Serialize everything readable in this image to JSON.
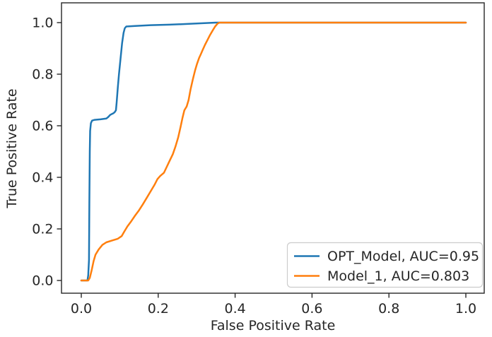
{
  "figure": {
    "background": "#ffffff",
    "text_color": "#262626",
    "legend_border_color": "#cccccc"
  },
  "chart_data": {
    "type": "line",
    "title": "",
    "xlabel": "False Positive Rate",
    "ylabel": "True Positive Rate",
    "xlim": [
      -0.05,
      1.05
    ],
    "ylim": [
      -0.05,
      1.07
    ],
    "grid": false,
    "legend_position": "lower right",
    "x_ticks": [
      0.0,
      0.2,
      0.4,
      0.6,
      0.8,
      1.0
    ],
    "y_ticks": [
      0.0,
      0.2,
      0.4,
      0.6,
      0.8,
      1.0
    ],
    "x_tick_labels": [
      "0.0",
      "0.2",
      "0.4",
      "0.6",
      "0.8",
      "1.0"
    ],
    "y_tick_labels": [
      "0.0",
      "0.2",
      "0.4",
      "0.6",
      "0.8",
      "1.0"
    ],
    "series": [
      {
        "name": "OPT_Model",
        "label": "OPT_Model, AUC=0.95",
        "auc": 0.95,
        "color": "#1f77b4",
        "points": [
          [
            0.0,
            0.0
          ],
          [
            0.016,
            0.0
          ],
          [
            0.018,
            0.02
          ],
          [
            0.02,
            0.08
          ],
          [
            0.021,
            0.3
          ],
          [
            0.022,
            0.5
          ],
          [
            0.023,
            0.58
          ],
          [
            0.025,
            0.61
          ],
          [
            0.028,
            0.62
          ],
          [
            0.035,
            0.623
          ],
          [
            0.05,
            0.625
          ],
          [
            0.065,
            0.628
          ],
          [
            0.07,
            0.634
          ],
          [
            0.075,
            0.642
          ],
          [
            0.08,
            0.646
          ],
          [
            0.084,
            0.649
          ],
          [
            0.087,
            0.653
          ],
          [
            0.09,
            0.66
          ],
          [
            0.092,
            0.69
          ],
          [
            0.095,
            0.75
          ],
          [
            0.098,
            0.8
          ],
          [
            0.102,
            0.86
          ],
          [
            0.106,
            0.92
          ],
          [
            0.11,
            0.96
          ],
          [
            0.113,
            0.978
          ],
          [
            0.117,
            0.985
          ],
          [
            0.14,
            0.987
          ],
          [
            0.18,
            0.99
          ],
          [
            0.23,
            0.992
          ],
          [
            0.28,
            0.995
          ],
          [
            0.32,
            0.998
          ],
          [
            0.35,
            1.0
          ],
          [
            1.0,
            1.0
          ]
        ]
      },
      {
        "name": "Model_1",
        "label": "Model_1, AUC=0.803",
        "auc": 0.803,
        "color": "#ff7f0e",
        "points": [
          [
            0.0,
            0.0
          ],
          [
            0.018,
            0.0
          ],
          [
            0.022,
            0.01
          ],
          [
            0.027,
            0.04
          ],
          [
            0.032,
            0.075
          ],
          [
            0.037,
            0.1
          ],
          [
            0.045,
            0.12
          ],
          [
            0.055,
            0.138
          ],
          [
            0.065,
            0.148
          ],
          [
            0.08,
            0.155
          ],
          [
            0.095,
            0.162
          ],
          [
            0.105,
            0.172
          ],
          [
            0.112,
            0.19
          ],
          [
            0.12,
            0.21
          ],
          [
            0.13,
            0.23
          ],
          [
            0.14,
            0.252
          ],
          [
            0.15,
            0.272
          ],
          [
            0.16,
            0.295
          ],
          [
            0.17,
            0.32
          ],
          [
            0.18,
            0.345
          ],
          [
            0.19,
            0.37
          ],
          [
            0.198,
            0.393
          ],
          [
            0.205,
            0.405
          ],
          [
            0.215,
            0.418
          ],
          [
            0.222,
            0.44
          ],
          [
            0.23,
            0.465
          ],
          [
            0.238,
            0.49
          ],
          [
            0.245,
            0.52
          ],
          [
            0.252,
            0.555
          ],
          [
            0.258,
            0.595
          ],
          [
            0.263,
            0.63
          ],
          [
            0.268,
            0.66
          ],
          [
            0.274,
            0.675
          ],
          [
            0.279,
            0.7
          ],
          [
            0.284,
            0.74
          ],
          [
            0.29,
            0.78
          ],
          [
            0.296,
            0.815
          ],
          [
            0.301,
            0.84
          ],
          [
            0.306,
            0.862
          ],
          [
            0.311,
            0.878
          ],
          [
            0.316,
            0.895
          ],
          [
            0.322,
            0.915
          ],
          [
            0.328,
            0.932
          ],
          [
            0.334,
            0.95
          ],
          [
            0.341,
            0.968
          ],
          [
            0.348,
            0.985
          ],
          [
            0.355,
            0.997
          ],
          [
            0.36,
            1.0
          ],
          [
            1.0,
            1.0
          ]
        ]
      }
    ]
  }
}
